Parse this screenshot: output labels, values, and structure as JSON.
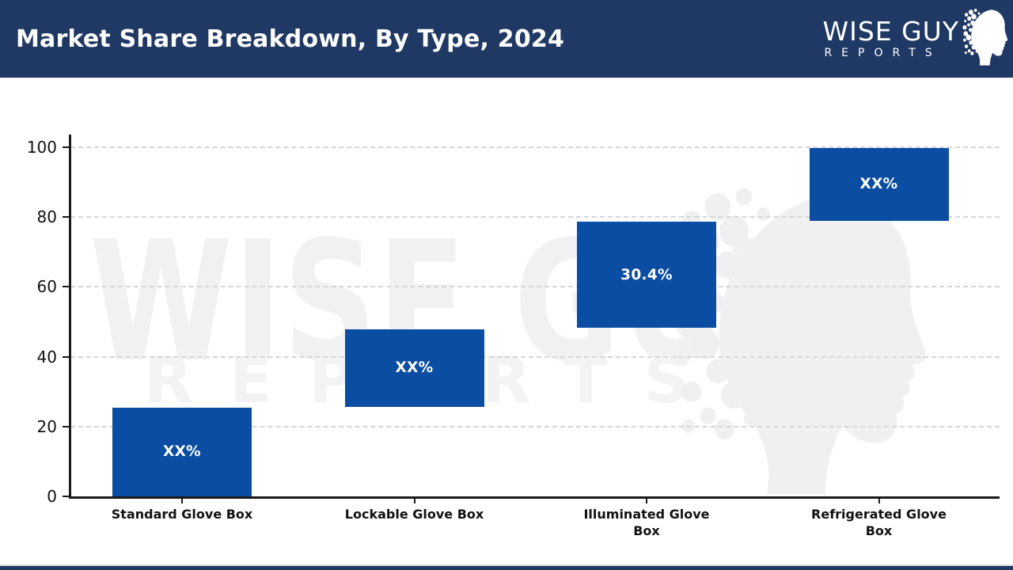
{
  "header": {
    "title": "Market Share Breakdown, By Type, 2024",
    "logo": {
      "wordmark": "WISE GUY",
      "subtext": "REPORTS"
    }
  },
  "watermark": {
    "line1": "WISE GUY",
    "line2": "REPORTS"
  },
  "colors": {
    "header_bg": "#1f3864",
    "bar_fill": "#0b4da2",
    "bar_label_text": "#ffffff",
    "gridline": "#d6d6d6",
    "axis": "#1a1a1a",
    "watermark": "#f0f0f2"
  },
  "chart_data": {
    "type": "bar",
    "subtype": "floating-waterfall",
    "title": "Market Share Breakdown, By Type, 2024",
    "xlabel": "",
    "ylabel": "",
    "ylim": [
      0,
      104
    ],
    "y_ticks": [
      0,
      20,
      40,
      60,
      80,
      100
    ],
    "grid": "horizontal-dashed",
    "legend": "none",
    "categories": [
      "Standard Glove Box",
      "Lockable Glove Box",
      "Illuminated Glove Box",
      "Refrigerated Glove Box"
    ],
    "bars": [
      {
        "category": "Standard Glove Box",
        "start": 0,
        "end": 25.4,
        "label": "XX%"
      },
      {
        "category": "Lockable Glove Box",
        "start": 25.6,
        "end": 47.9,
        "label": "XX%"
      },
      {
        "category": "Illuminated Glove Box",
        "start": 48.2,
        "end": 78.6,
        "label": "30.4%"
      },
      {
        "category": "Refrigerated Glove Box",
        "start": 79.0,
        "end": 99.8,
        "label": "XX%"
      }
    ]
  }
}
